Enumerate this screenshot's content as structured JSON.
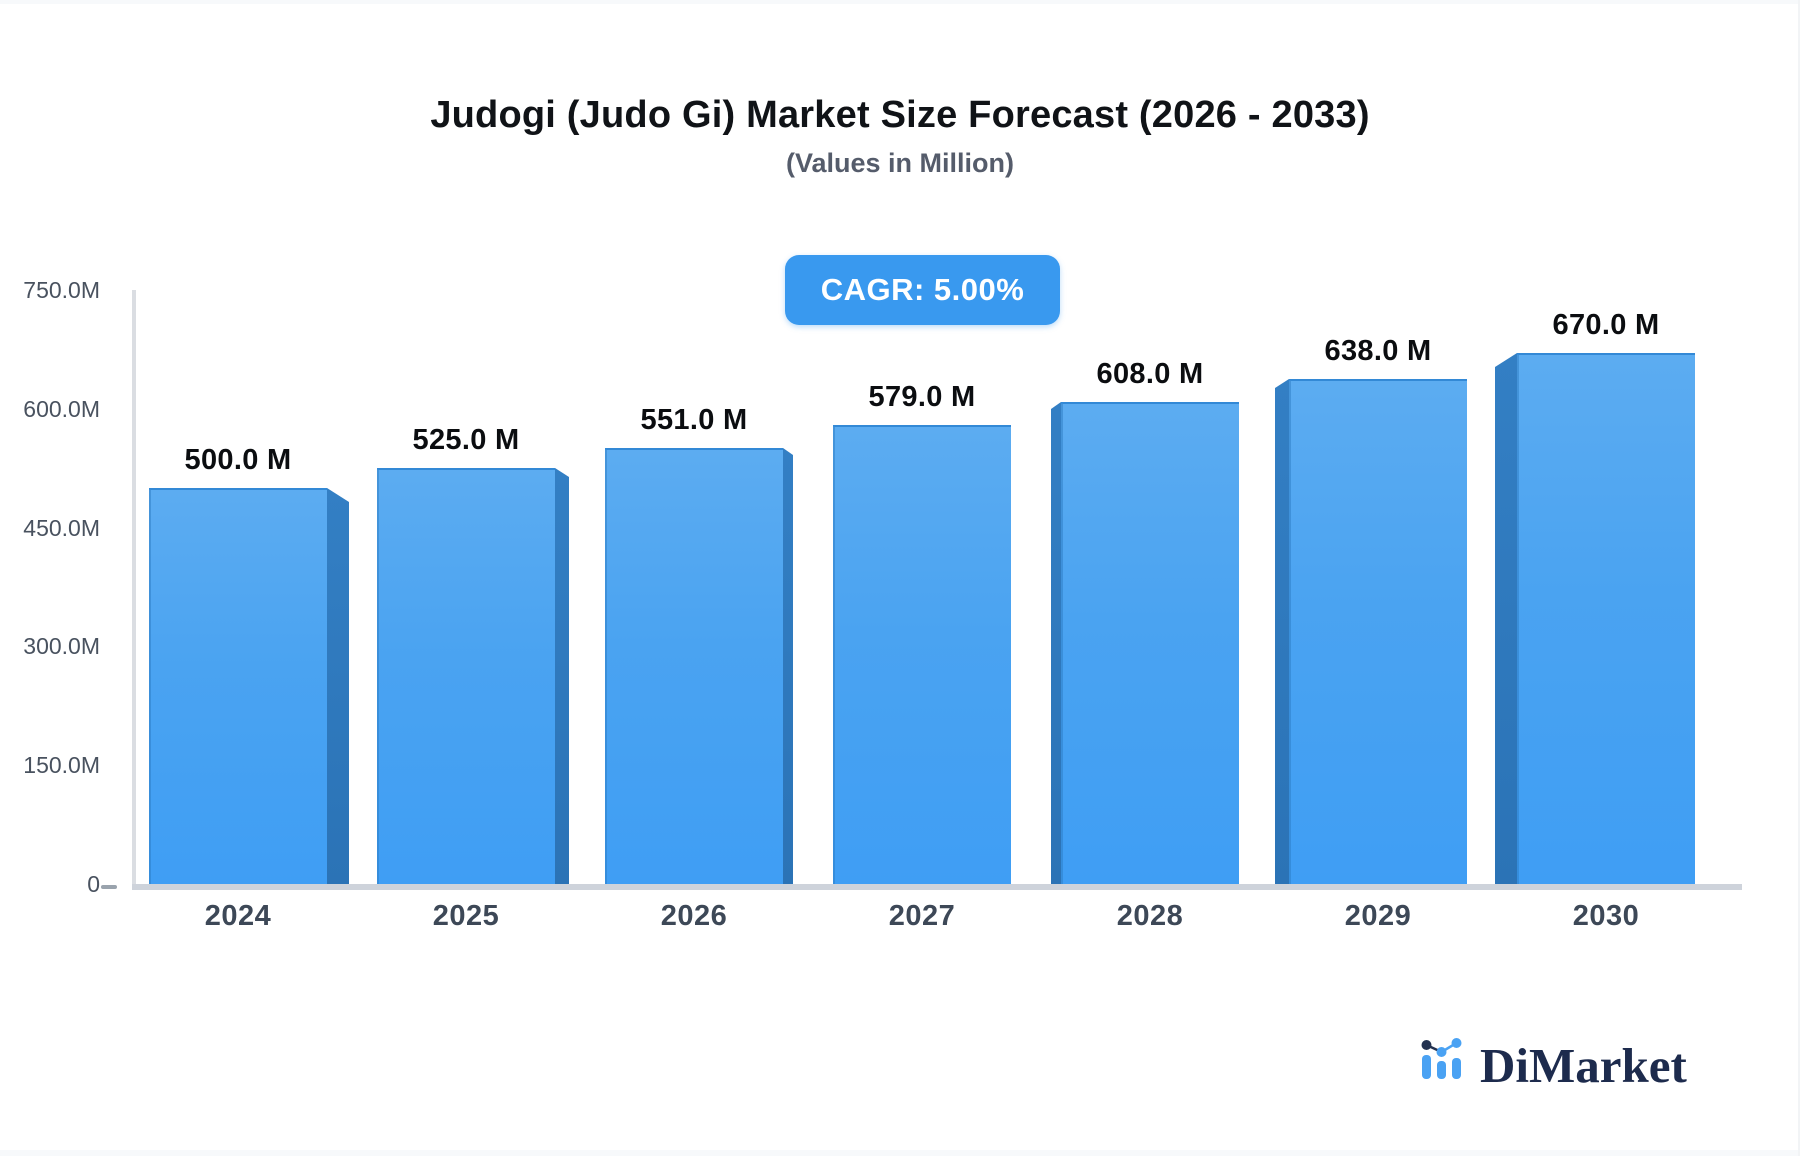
{
  "chart_data": {
    "type": "bar",
    "title": "Judogi (Judo Gi) Market Size Forecast (2026 - 2033)",
    "subtitle": "(Values in Million)",
    "cagr_badge": "CAGR: 5.00%",
    "categories": [
      "2024",
      "2025",
      "2026",
      "2027",
      "2028",
      "2029",
      "2030"
    ],
    "values": [
      500,
      525,
      551,
      579,
      608,
      638,
      670
    ],
    "bar_labels": [
      "500.0 M",
      "525.0 M",
      "551.0 M",
      "579.0 M",
      "608.0 M",
      "638.0 M",
      "670.0 M"
    ],
    "unit": "Million",
    "y_ticks": [
      {
        "label": "750.0M",
        "value": 750
      },
      {
        "label": "600.0M",
        "value": 600
      },
      {
        "label": "450.0M",
        "value": 450
      },
      {
        "label": "300.0M",
        "value": 300
      },
      {
        "label": "150.0M",
        "value": 150
      },
      {
        "label": "0",
        "value": 0
      }
    ],
    "ylim": [
      0,
      750
    ],
    "grid": false,
    "legend": "none",
    "colors": {
      "bar_face": "#4aa3f1",
      "bar_side": "#2e78bb",
      "badge_background": "#3999ef",
      "badge_text": "#ffffff",
      "axis_line": "#ced3db",
      "title_text": "#101317",
      "subtitle_text": "#555c6b",
      "tick_text": "#49525f"
    }
  },
  "branding": {
    "logo_text": "DiMarket",
    "logo_icon": "bar-chart-with-trend-dots-icon"
  }
}
